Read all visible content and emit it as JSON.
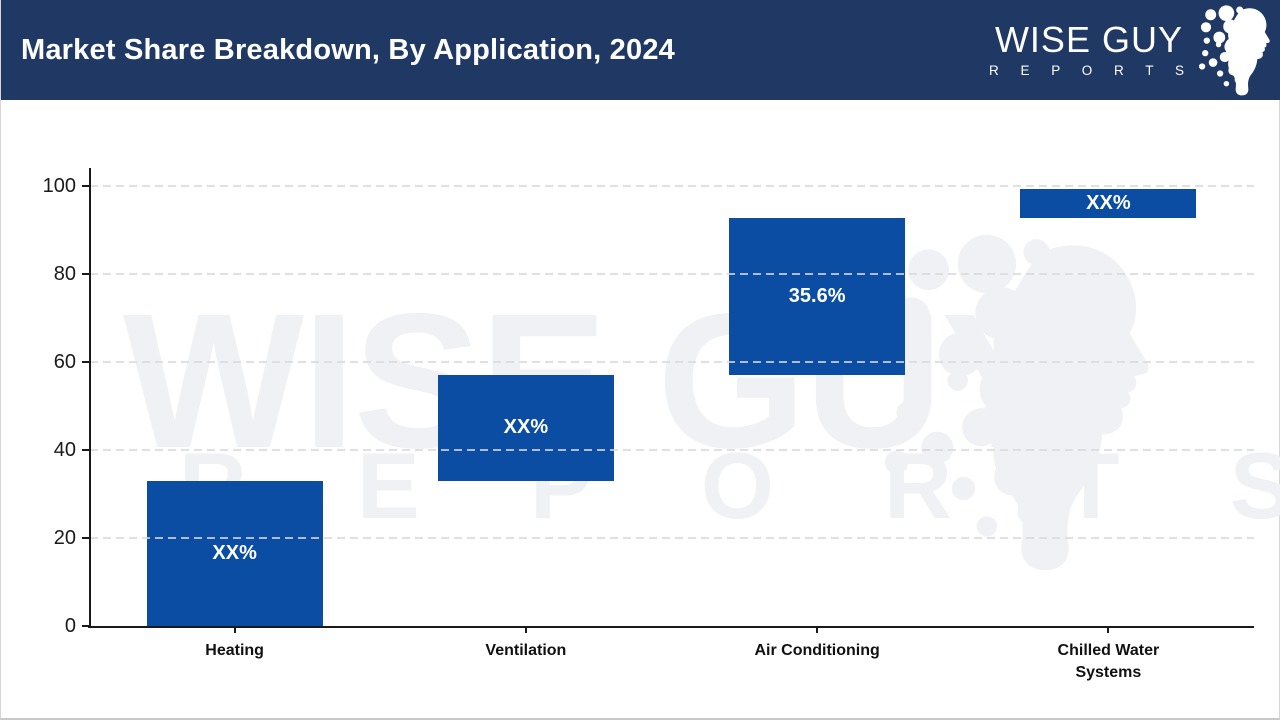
{
  "header": {
    "title": "Market Share Breakdown, By Application, 2024",
    "logo": {
      "line1": "WISE GUY",
      "line2": "R E P O R T S"
    }
  },
  "watermark": {
    "line1": "WISE GUY",
    "line2": "R E P O R T S"
  },
  "colors": {
    "header_bg": "#1f3864",
    "bar": "#0b4da2",
    "grid": "#d9d9d9",
    "axis": "#1a1a1a",
    "watermark": "#f0f1f4",
    "bar_label": "#ffffff"
  },
  "chart_data": {
    "type": "bar",
    "subtype": "floating-waterfall",
    "title": "Market Share Breakdown, By Application, 2024",
    "categories": [
      "Heating",
      "Ventilation",
      "Air Conditioning",
      "Chilled Water Systems"
    ],
    "segments": [
      {
        "category": "Heating",
        "start": 0,
        "end": 33,
        "label": "XX%"
      },
      {
        "category": "Ventilation",
        "start": 33,
        "end": 57.1,
        "label": "XX%"
      },
      {
        "category": "Air Conditioning",
        "start": 57.1,
        "end": 92.7,
        "label": "35.6%"
      },
      {
        "category": "Chilled Water Systems",
        "start": 92.7,
        "end": 99.4,
        "label": "XX%"
      }
    ],
    "yticks": [
      0,
      20,
      40,
      60,
      80,
      100
    ],
    "ylim": [
      0,
      104
    ],
    "xlabel": "",
    "ylabel": "",
    "grid": "horizontal-dashed",
    "legend": "none"
  }
}
